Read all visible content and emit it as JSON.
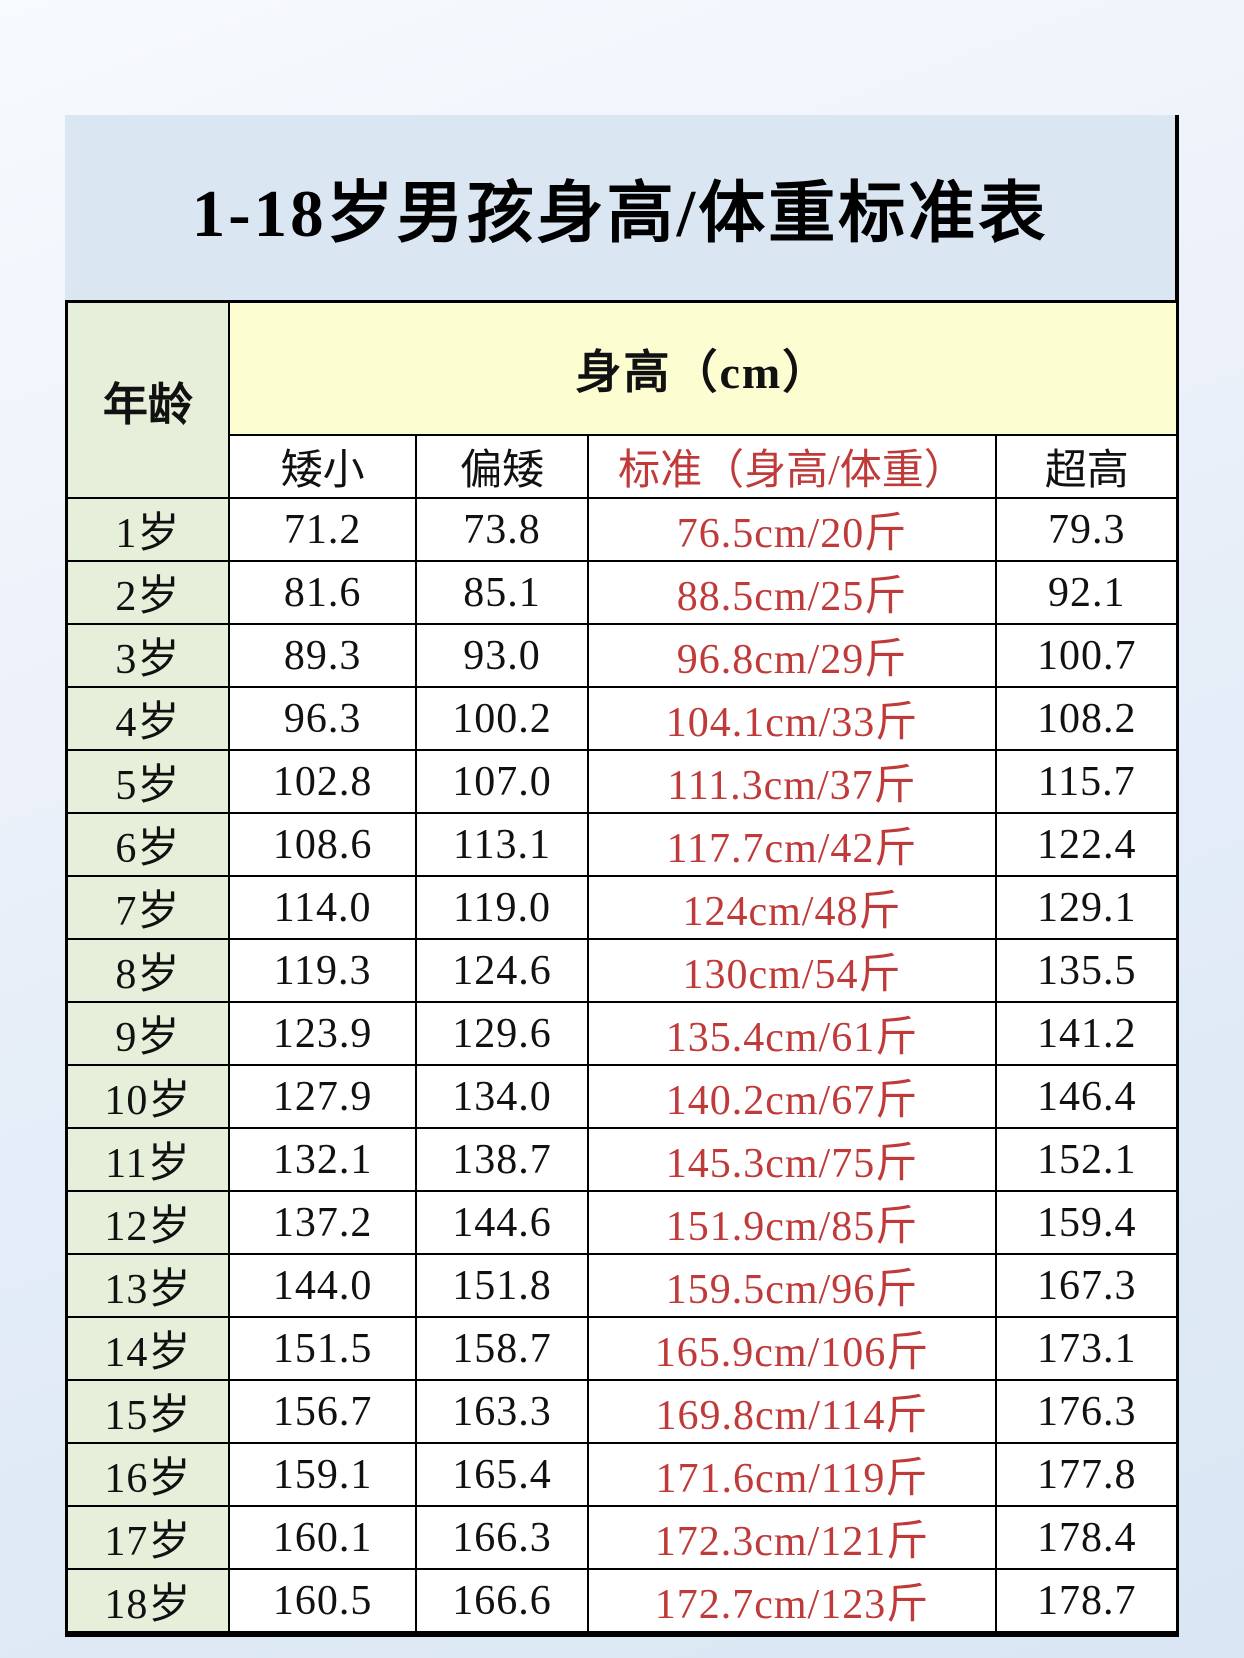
{
  "page": {
    "title_text": "1-18岁男孩身高/体重标准表"
  },
  "table": {
    "age_header": "年龄",
    "height_header": "身高（cm）",
    "columns": [
      "矮小",
      "偏矮",
      "标准（身高/体重）",
      "超高"
    ],
    "rows": [
      {
        "age": "1岁",
        "short": "71.2",
        "below": "73.8",
        "standard": "76.5cm/20斤",
        "tall": "79.3"
      },
      {
        "age": "2岁",
        "short": "81.6",
        "below": "85.1",
        "standard": "88.5cm/25斤",
        "tall": "92.1"
      },
      {
        "age": "3岁",
        "short": "89.3",
        "below": "93.0",
        "standard": "96.8cm/29斤",
        "tall": "100.7"
      },
      {
        "age": "4岁",
        "short": "96.3",
        "below": "100.2",
        "standard": "104.1cm/33斤",
        "tall": "108.2"
      },
      {
        "age": "5岁",
        "short": "102.8",
        "below": "107.0",
        "standard": "111.3cm/37斤",
        "tall": "115.7"
      },
      {
        "age": "6岁",
        "short": "108.6",
        "below": "113.1",
        "standard": "117.7cm/42斤",
        "tall": "122.4"
      },
      {
        "age": "7岁",
        "short": "114.0",
        "below": "119.0",
        "standard": "124cm/48斤",
        "tall": "129.1"
      },
      {
        "age": "8岁",
        "short": "119.3",
        "below": "124.6",
        "standard": "130cm/54斤",
        "tall": "135.5"
      },
      {
        "age": "9岁",
        "short": "123.9",
        "below": "129.6",
        "standard": "135.4cm/61斤",
        "tall": "141.2"
      },
      {
        "age": "10岁",
        "short": "127.9",
        "below": "134.0",
        "standard": "140.2cm/67斤",
        "tall": "146.4"
      },
      {
        "age": "11岁",
        "short": "132.1",
        "below": "138.7",
        "standard": "145.3cm/75斤",
        "tall": "152.1"
      },
      {
        "age": "12岁",
        "short": "137.2",
        "below": "144.6",
        "standard": "151.9cm/85斤",
        "tall": "159.4"
      },
      {
        "age": "13岁",
        "short": "144.0",
        "below": "151.8",
        "standard": "159.5cm/96斤",
        "tall": "167.3"
      },
      {
        "age": "14岁",
        "short": "151.5",
        "below": "158.7",
        "standard": "165.9cm/106斤",
        "tall": "173.1"
      },
      {
        "age": "15岁",
        "short": "156.7",
        "below": "163.3",
        "standard": "169.8cm/114斤",
        "tall": "176.3"
      },
      {
        "age": "16岁",
        "short": "159.1",
        "below": "165.4",
        "standard": "171.6cm/119斤",
        "tall": "177.8"
      },
      {
        "age": "17岁",
        "short": "160.1",
        "below": "166.3",
        "standard": "172.3cm/121斤",
        "tall": "178.4"
      },
      {
        "age": "18岁",
        "short": "160.5",
        "below": "166.6",
        "standard": "172.7cm/123斤",
        "tall": "178.7"
      }
    ]
  },
  "colors": {
    "accent_red": "#c03a3a",
    "banner_blue": "#dae6f2",
    "age_green": "#e5efda",
    "header_yellow": "#fcfdd1",
    "page_background_top": "#f7fafe",
    "page_background_bottom": "#d9e6f3",
    "border_black": "#000000"
  }
}
